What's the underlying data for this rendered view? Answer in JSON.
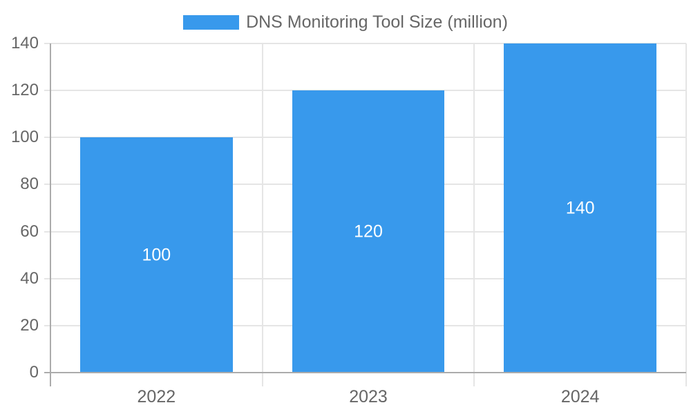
{
  "chart_data": {
    "type": "bar",
    "title": "DNS Monitoring Tool Size (million)",
    "categories": [
      "2022",
      "2023",
      "2024"
    ],
    "values": [
      100,
      120,
      140
    ],
    "series": [
      {
        "name": "DNS Monitoring Tool Size (million)",
        "values": [
          100,
          120,
          140
        ]
      }
    ],
    "data_labels": [
      "100",
      "120",
      "140"
    ],
    "xlabel": "",
    "ylabel": "",
    "ylim": [
      0,
      140
    ],
    "yticks": [
      0,
      20,
      40,
      60,
      80,
      100,
      120,
      140
    ],
    "ytick_labels": [
      "0",
      "20",
      "40",
      "60",
      "80",
      "100",
      "120",
      "140"
    ],
    "grid": true,
    "legend_position": "top",
    "colors": {
      "bar": "#3899EC",
      "data_label": "#FFFFFF",
      "axis_text": "#666666",
      "grid_line": "#E5E5E5",
      "axis_line": "#ABABAB",
      "background": "#FFFFFF"
    }
  }
}
